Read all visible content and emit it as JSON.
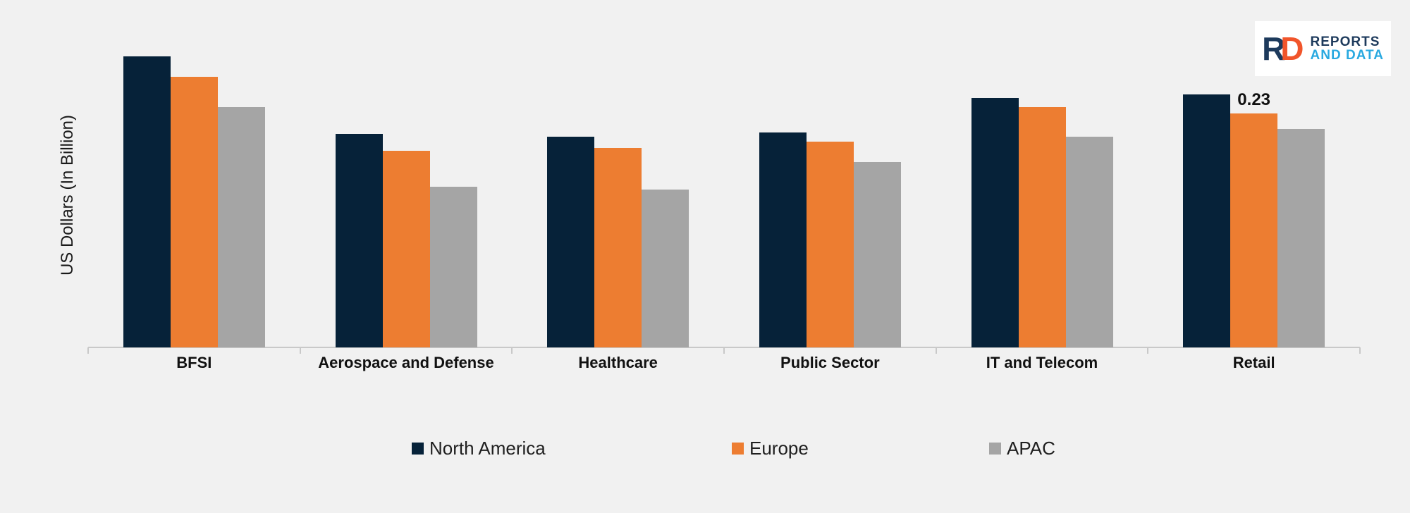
{
  "page": {
    "background": "#f1f1f1",
    "axis_color": "#c9c9c9"
  },
  "y_axis_title": "US Dollars  (In Billion)",
  "logo": {
    "monogram_r": "R",
    "monogram_d": "D",
    "line1": "REPORTS",
    "line2": "AND DATA",
    "navy": "#1d3a5c",
    "orange": "#f1552b",
    "blue": "#29a9e0"
  },
  "chart_data": {
    "type": "bar",
    "title": "",
    "xlabel": "",
    "ylabel": "US Dollars  (In Billion)",
    "categories": [
      "BFSI",
      "Aerospace and Defense",
      "Healthcare",
      "Public Sector",
      "IT and Telecom",
      "Retail"
    ],
    "series": [
      {
        "name": "North America",
        "color": "#062239",
        "values": [
          0.286,
          0.21,
          0.207,
          0.211,
          0.245,
          0.249
        ]
      },
      {
        "name": "Europe",
        "color": "#ed7d31",
        "values": [
          0.266,
          0.193,
          0.196,
          0.202,
          0.236,
          0.23
        ]
      },
      {
        "name": "APAC",
        "color": "#a5a5a5",
        "values": [
          0.236,
          0.158,
          0.155,
          0.182,
          0.207,
          0.215
        ]
      }
    ],
    "ylim": [
      0,
      0.34
    ],
    "grid": false,
    "legend_position": "bottom",
    "data_labels": [
      {
        "series": "Europe",
        "category": "Retail",
        "text": "0.23",
        "value": 0.23
      }
    ]
  }
}
